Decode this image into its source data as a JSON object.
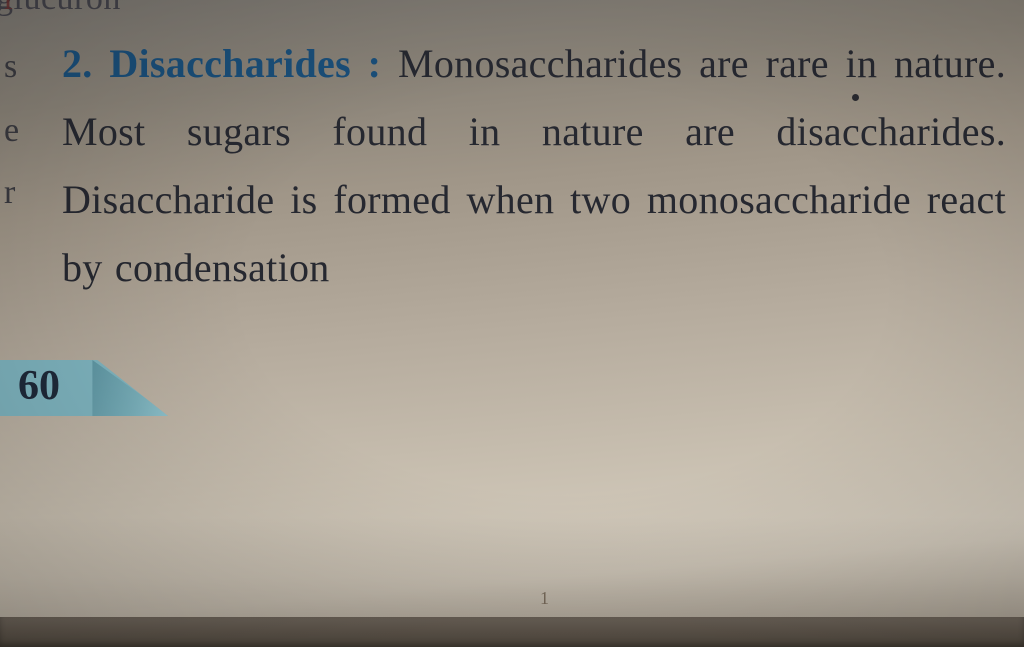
{
  "margin": {
    "cut_word_top": "glucuron",
    "letters": [
      "r",
      "s",
      "e",
      "r"
    ],
    "letter_colors": [
      "#6a3030",
      "#2f3340",
      "#2f3340",
      "#2f3340"
    ]
  },
  "section": {
    "number": "2.",
    "title": "Disaccharides",
    "title_color": "#1a4f7a",
    "body": "Monosaccharides are rare in nature. Most sugars found in nature are disaccharides. Disaccharide is formed when two monosaccharide react by condensation",
    "body_color": "#262830",
    "font_size_pt": 30,
    "line_height": 1.7
  },
  "page_number": {
    "value": "60",
    "bg_color": "#7fb5c0",
    "text_color": "#1f2a3a"
  },
  "footer_mark": "1",
  "background": {
    "paper_gradient": [
      "#7a7670",
      "#d5cdbf"
    ],
    "bottom_edge": "#4e463c"
  }
}
